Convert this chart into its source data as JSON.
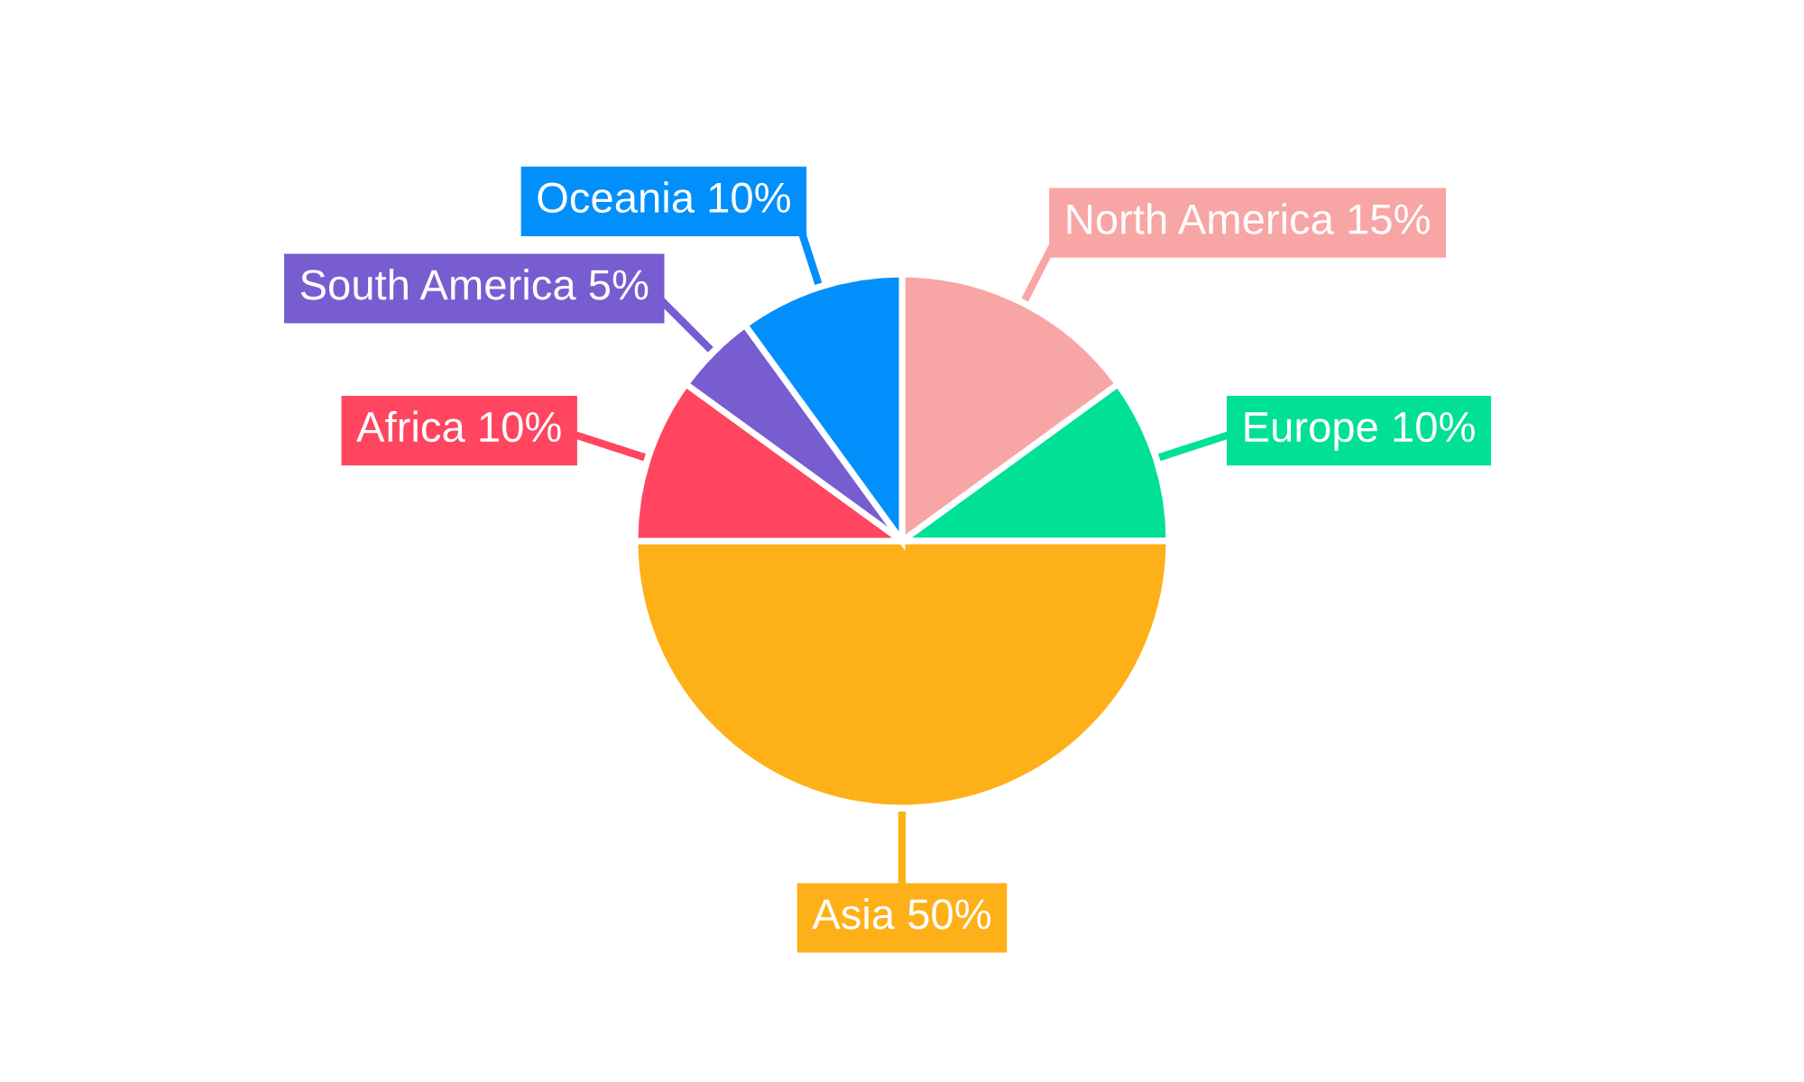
{
  "chart_data": {
    "type": "pie",
    "categories": [
      "North America",
      "Europe",
      "Asia",
      "Africa",
      "South America",
      "Oceania"
    ],
    "values": [
      15,
      10,
      50,
      10,
      5,
      10
    ],
    "value_labels": [
      "15%",
      "10%",
      "50%",
      "10%",
      "5%",
      "10%"
    ],
    "colors": [
      "#f8a5a5",
      "#00e096",
      "#feb019",
      "#ff4560",
      "#775dd0",
      "#008ffb"
    ]
  }
}
